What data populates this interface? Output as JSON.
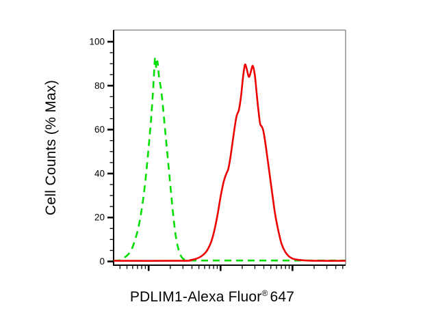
{
  "figure": {
    "background_color": "#ffffff",
    "title": ""
  },
  "chart_data": {
    "type": "line",
    "subtype": "flow-cytometry-histogram-overlay",
    "title": "",
    "xlabel": "PDLIM1-Alexa Fluor® 647",
    "xlabel_main": "PDLIM1-Alexa Fluor",
    "xlabel_sup": "®",
    "xlabel_suffix": "647",
    "ylabel": "Cell Counts (% Max)",
    "x_axis": {
      "scale": "log",
      "tick_labels": [],
      "decade_offset_frac": -0.159,
      "decade_width_frac": 0.31,
      "grid": false
    },
    "y_axis": {
      "min": 0,
      "max": 100,
      "major_step": 20,
      "minor_step": 5,
      "tick_labels": [
        "0",
        "20",
        "40",
        "60",
        "80",
        "100"
      ],
      "display_range": [
        -1.7,
        105.3
      ],
      "grid": false
    },
    "legend": {
      "visible": false
    },
    "axis_color": "#000000",
    "border_color": "#7b7b7b",
    "series": [
      {
        "name": "green-dashed-histogram",
        "style": "dashed",
        "color": "#00dd00",
        "line_width": 2.6,
        "peak_value_pct": 93,
        "points_xfrac_ypct": [
          [
            0.0,
            0.4
          ],
          [
            0.022,
            0.4
          ],
          [
            0.034,
            1.0
          ],
          [
            0.056,
            2.5
          ],
          [
            0.075,
            5
          ],
          [
            0.09,
            9
          ],
          [
            0.106,
            15
          ],
          [
            0.12,
            23
          ],
          [
            0.133,
            33
          ],
          [
            0.143,
            43
          ],
          [
            0.152,
            53
          ],
          [
            0.161,
            64
          ],
          [
            0.169,
            76
          ],
          [
            0.175,
            87
          ],
          [
            0.179,
            93
          ],
          [
            0.184,
            88
          ],
          [
            0.189,
            91
          ],
          [
            0.196,
            84
          ],
          [
            0.205,
            78
          ],
          [
            0.213,
            70
          ],
          [
            0.221,
            61
          ],
          [
            0.229,
            52
          ],
          [
            0.238,
            42
          ],
          [
            0.247,
            32
          ],
          [
            0.256,
            22
          ],
          [
            0.266,
            13
          ],
          [
            0.276,
            7
          ],
          [
            0.288,
            3
          ],
          [
            0.3,
            1.2
          ],
          [
            0.32,
            0.5
          ],
          [
            0.36,
            0.4
          ],
          [
            0.45,
            0.4
          ],
          [
            0.55,
            0.4
          ],
          [
            0.65,
            0.4
          ],
          [
            0.75,
            0.4
          ],
          [
            0.85,
            0.4
          ],
          [
            0.95,
            0.4
          ],
          [
            1.0,
            0.4
          ]
        ]
      },
      {
        "name": "red-solid-histogram",
        "style": "solid",
        "color": "#ee0000",
        "line_width": 2.6,
        "peak_value_pct": 89.5,
        "points_xfrac_ypct": [
          [
            0.0,
            0.3
          ],
          [
            0.3,
            0.3
          ],
          [
            0.33,
            0.6
          ],
          [
            0.355,
            1.2
          ],
          [
            0.38,
            2.5
          ],
          [
            0.403,
            5
          ],
          [
            0.424,
            10
          ],
          [
            0.444,
            19
          ],
          [
            0.462,
            30
          ],
          [
            0.475,
            36.5
          ],
          [
            0.486,
            40
          ],
          [
            0.494,
            42
          ],
          [
            0.503,
            47
          ],
          [
            0.515,
            56
          ],
          [
            0.524,
            62.5
          ],
          [
            0.531,
            66.5
          ],
          [
            0.54,
            69
          ],
          [
            0.549,
            75
          ],
          [
            0.557,
            83
          ],
          [
            0.566,
            89.5
          ],
          [
            0.574,
            87.5
          ],
          [
            0.583,
            84
          ],
          [
            0.592,
            86.5
          ],
          [
            0.6,
            89
          ],
          [
            0.609,
            84.5
          ],
          [
            0.617,
            76
          ],
          [
            0.625,
            68
          ],
          [
            0.632,
            62.5
          ],
          [
            0.638,
            61.5
          ],
          [
            0.645,
            59.5
          ],
          [
            0.654,
            54
          ],
          [
            0.663,
            47
          ],
          [
            0.674,
            38.5
          ],
          [
            0.686,
            29
          ],
          [
            0.697,
            21
          ],
          [
            0.71,
            14
          ],
          [
            0.724,
            8
          ],
          [
            0.739,
            4.5
          ],
          [
            0.757,
            2.2
          ],
          [
            0.78,
            1.0
          ],
          [
            0.82,
            0.5
          ],
          [
            0.88,
            0.3
          ],
          [
            1.0,
            0.3
          ]
        ]
      }
    ]
  }
}
